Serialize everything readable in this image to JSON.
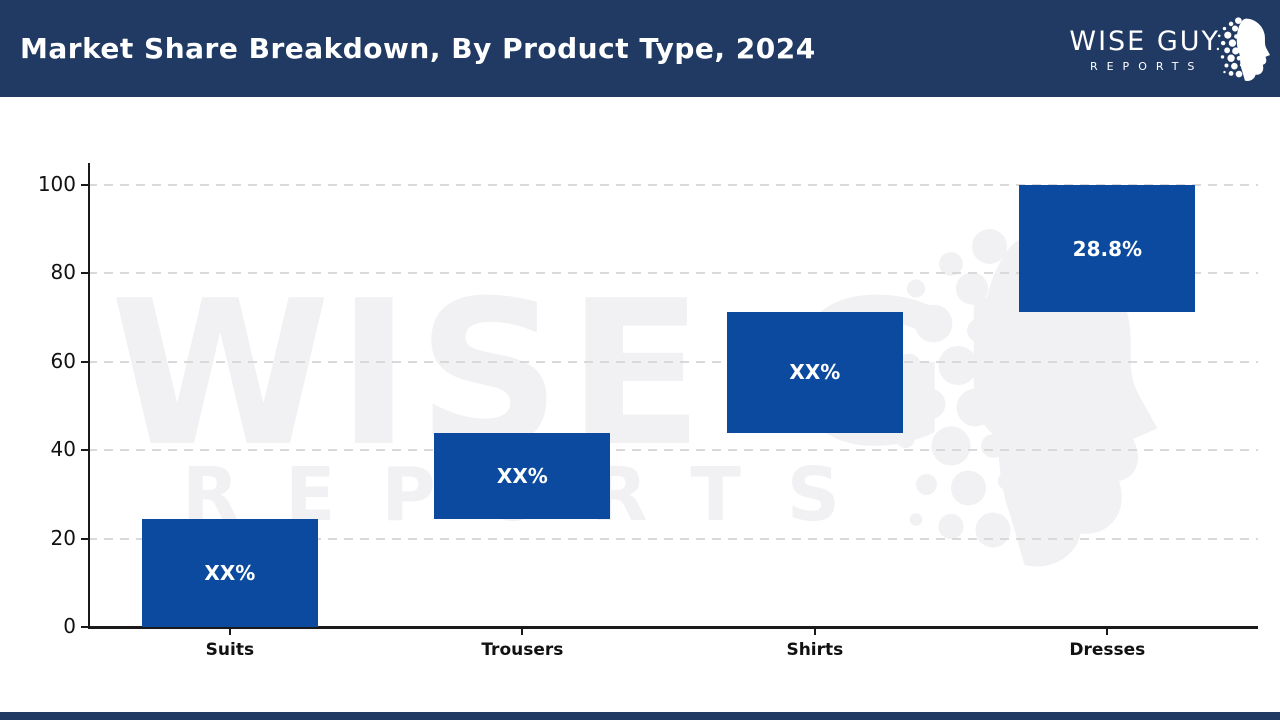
{
  "header": {
    "title": "Market Share Breakdown, By Product Type, 2024",
    "bg_color": "#213a64",
    "logo": {
      "line1": "WISE GUY",
      "line2": "REPORTS"
    }
  },
  "footer": {
    "bg_color": "#213a64"
  },
  "watermark": {
    "line1": "WISE GU",
    "line2": "REPORTS"
  },
  "chart_data": {
    "type": "bar",
    "subtype": "waterfall",
    "title": "Market Share Breakdown, By Product Type, 2024",
    "xlabel": "",
    "ylabel": "",
    "categories": [
      "Suits",
      "Trousers",
      "Shirts",
      "Dresses"
    ],
    "segments": [
      {
        "category": "Suits",
        "start": 0,
        "end": 24.4,
        "label": "XX%"
      },
      {
        "category": "Trousers",
        "start": 24.4,
        "end": 44.0,
        "label": "XX%"
      },
      {
        "category": "Shirts",
        "start": 44.0,
        "end": 71.2,
        "label": "XX%"
      },
      {
        "category": "Dresses",
        "start": 71.2,
        "end": 100,
        "label": "28.8%"
      }
    ],
    "values": [
      24.4,
      19.6,
      27.2,
      28.8
    ],
    "bar_labels": [
      "XX%",
      "XX%",
      "XX%",
      "28.8%"
    ],
    "ylim": [
      0,
      105
    ],
    "yticks": [
      0,
      20,
      40,
      60,
      80,
      100
    ],
    "grid": "horizontal dashed",
    "legend": "none",
    "bar_color": "#0b4a9e",
    "bar_label_color": "#ffffff",
    "axis_color": "#1a1a1a",
    "gridline_color": "#d9d9d9"
  }
}
